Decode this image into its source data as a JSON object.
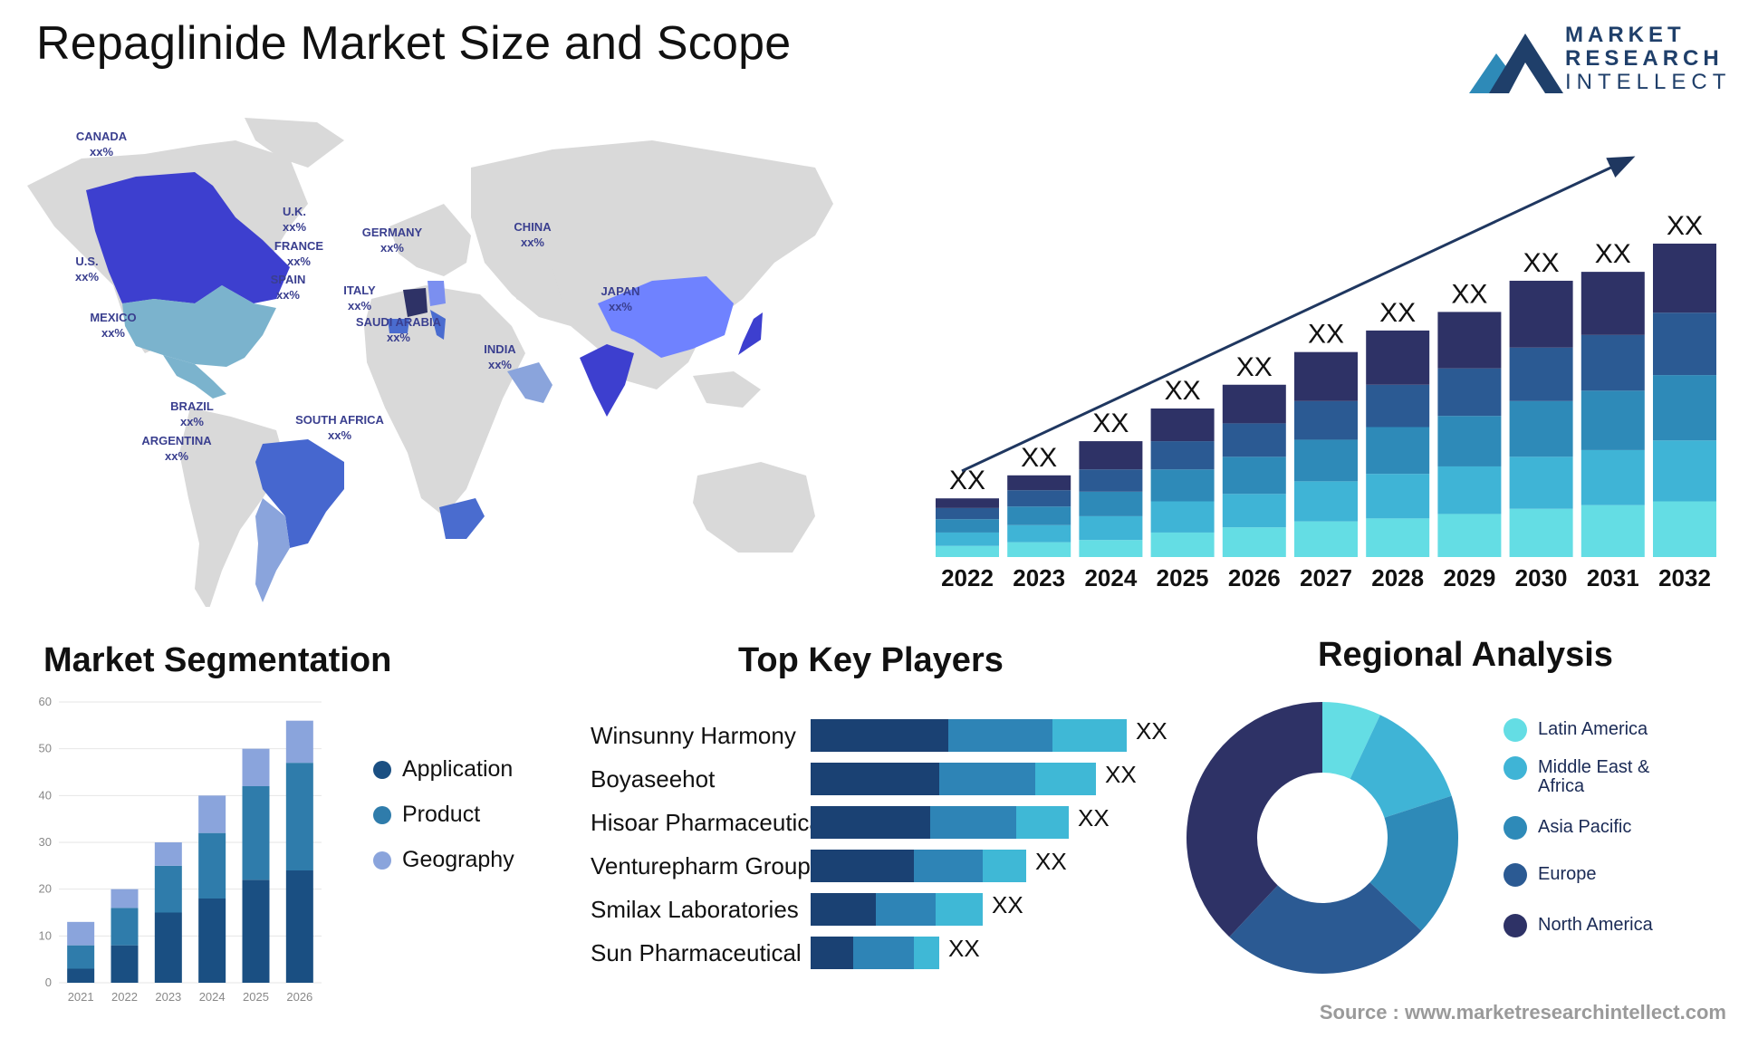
{
  "title": "Repaglinide Market Size and Scope",
  "logo": {
    "line1": "MARKET",
    "line2": "RESEARCH",
    "line3": "INTELLECT"
  },
  "map": {
    "labels": [
      {
        "name": "CANADA",
        "value": "xx%"
      },
      {
        "name": "U.S.",
        "value": "xx%"
      },
      {
        "name": "MEXICO",
        "value": "xx%"
      },
      {
        "name": "BRAZIL",
        "value": "xx%"
      },
      {
        "name": "ARGENTINA",
        "value": "xx%"
      },
      {
        "name": "U.K.",
        "value": "xx%"
      },
      {
        "name": "FRANCE",
        "value": "xx%"
      },
      {
        "name": "SPAIN",
        "value": "xx%"
      },
      {
        "name": "GERMANY",
        "value": "xx%"
      },
      {
        "name": "ITALY",
        "value": "xx%"
      },
      {
        "name": "SAUDI ARABIA",
        "value": "xx%"
      },
      {
        "name": "SOUTH AFRICA",
        "value": "xx%"
      },
      {
        "name": "CHINA",
        "value": "xx%"
      },
      {
        "name": "INDIA",
        "value": "xx%"
      },
      {
        "name": "JAPAN",
        "value": "xx%"
      }
    ]
  },
  "sections": {
    "segmentation": "Market Segmentation",
    "players": "Top Key Players",
    "regional": "Regional Analysis"
  },
  "source": "Source : www.marketresearchintellect.com",
  "colors": {
    "navy": "#2e3266",
    "blue_dark": "#2b5a93",
    "blue": "#2e8ab8",
    "blue_light": "#3fb4d6",
    "cyan": "#64dde4",
    "seg_app": "#1a4f82",
    "seg_prod": "#2f7cab",
    "seg_geo": "#8aa4dc"
  },
  "chart_data": [
    {
      "type": "bar",
      "stacked": true,
      "categories": [
        "2022",
        "2023",
        "2024",
        "2025",
        "2026",
        "2027",
        "2028",
        "2029",
        "2030",
        "2031",
        "2032"
      ],
      "data_labels": [
        "XX",
        "XX",
        "XX",
        "XX",
        "XX",
        "XX",
        "XX",
        "XX",
        "XX",
        "XX",
        "XX"
      ],
      "series": [
        {
          "values": [
            1.5,
            2.0,
            2.3,
            3.3,
            4.0,
            4.8,
            5.2,
            5.8,
            6.5,
            7.0,
            7.5
          ],
          "color": "#64dde4"
        },
        {
          "values": [
            1.8,
            2.3,
            3.2,
            4.2,
            4.5,
            5.4,
            6.0,
            6.4,
            7.0,
            7.4,
            8.2
          ],
          "color": "#3fb4d6"
        },
        {
          "values": [
            1.8,
            2.5,
            3.3,
            4.3,
            5.0,
            5.6,
            6.3,
            6.8,
            7.5,
            8.0,
            8.8
          ],
          "color": "#2e8ab8"
        },
        {
          "values": [
            1.5,
            2.2,
            3.0,
            3.8,
            4.5,
            5.2,
            5.7,
            6.4,
            7.2,
            7.5,
            8.4
          ],
          "color": "#2b5a93"
        },
        {
          "values": [
            1.3,
            2.0,
            3.8,
            4.4,
            5.2,
            6.6,
            7.3,
            7.6,
            9.0,
            8.5,
            9.3
          ],
          "color": "#2e3266"
        }
      ],
      "trend_arrow": true
    },
    {
      "type": "bar",
      "stacked": true,
      "categories": [
        "2021",
        "2022",
        "2023",
        "2024",
        "2025",
        "2026"
      ],
      "series": [
        {
          "name": "Application",
          "values": [
            3,
            8,
            15,
            18,
            22,
            24
          ]
        },
        {
          "name": "Product",
          "values": [
            5,
            8,
            10,
            14,
            20,
            23
          ]
        },
        {
          "name": "Geography",
          "values": [
            5,
            4,
            5,
            8,
            8,
            9
          ]
        }
      ],
      "yticks": [
        "0",
        "10",
        "20",
        "30",
        "40",
        "50",
        "60"
      ],
      "ylim": [
        0,
        60
      ]
    },
    {
      "type": "bar",
      "orientation": "horizontal",
      "stacked": true,
      "categories": [
        "Winsunny Harmony",
        "Boyaseehot",
        "Hisoar Pharmaceutical",
        "Venturepharm Group",
        "Smilax Laboratories",
        "Sun Pharmaceutical"
      ],
      "data_labels": [
        "XX",
        "XX",
        "XX",
        "XX",
        "XX",
        "XX"
      ],
      "series": [
        {
          "values": [
            152,
            142,
            132,
            114,
            72,
            47
          ],
          "color": "#1a4173"
        },
        {
          "values": [
            115,
            106,
            95,
            76,
            66,
            67
          ],
          "color": "#2e84b6"
        },
        {
          "values": [
            82,
            67,
            58,
            48,
            52,
            28
          ],
          "color": "#3fb8d6"
        }
      ]
    },
    {
      "type": "pie",
      "donut": true,
      "labels": [
        "Latin America",
        "Middle East & Africa",
        "Asia Pacific",
        "Europe",
        "North America"
      ],
      "values": [
        7,
        13,
        17,
        25,
        38
      ],
      "colors": [
        "#64dde4",
        "#3fb4d6",
        "#2e8ab8",
        "#2b5a93",
        "#2e3266"
      ]
    }
  ]
}
